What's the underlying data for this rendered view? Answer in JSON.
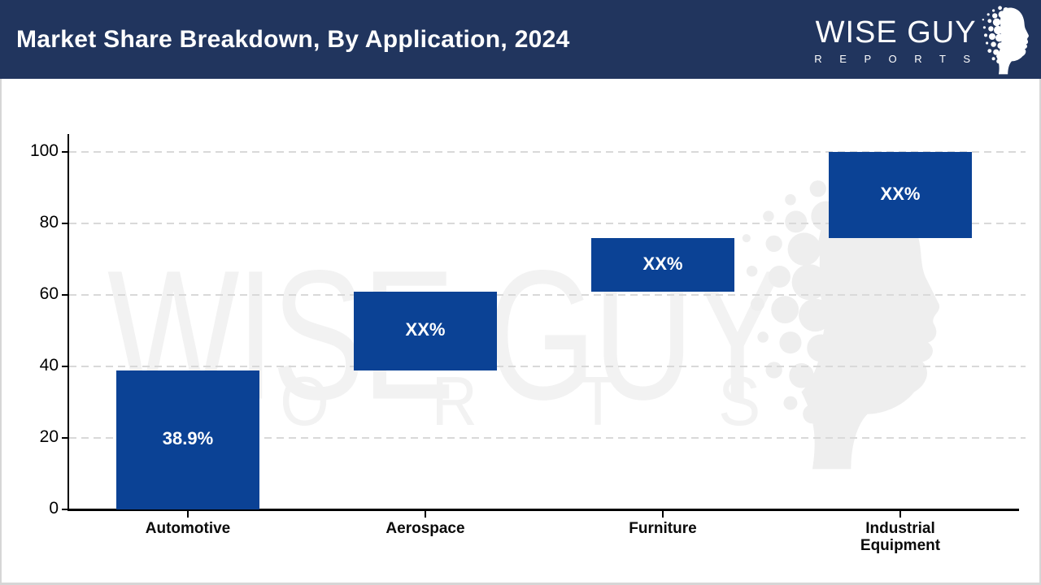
{
  "header": {
    "title": "Market Share Breakdown, By Application, 2024",
    "logo": {
      "wordmark": "WISE GUY",
      "sub": "R E P O R T S"
    }
  },
  "watermark": {
    "wordmark": "WISE GUY",
    "sub": "P O R T S"
  },
  "chart_data": {
    "type": "bar",
    "subtype": "waterfall-floating-segments",
    "title": "Market Share Breakdown, By Application, 2024",
    "categories": [
      "Automotive",
      "Aerospace",
      "Furniture",
      "Industrial Equipment"
    ],
    "segments": [
      {
        "category": "Automotive",
        "start": 0,
        "end": 38.9,
        "label": "38.9%"
      },
      {
        "category": "Aerospace",
        "start": 38.9,
        "end": 61.0,
        "label": "XX%"
      },
      {
        "category": "Furniture",
        "start": 61.0,
        "end": 75.9,
        "label": "XX%"
      },
      {
        "category": "Industrial Equipment",
        "start": 75.9,
        "end": 100,
        "label": "XX%"
      }
    ],
    "segment_sizes_pct": [
      38.9,
      22.1,
      14.9,
      24.1
    ],
    "yticks": [
      0,
      20,
      40,
      60,
      80,
      100
    ],
    "ylim": [
      0,
      105
    ],
    "xlabel": "",
    "ylabel": "",
    "grid": "horizontal-dashed",
    "legend": "none",
    "bar_color": "#0b4295",
    "bar_label_color": "#ffffff"
  },
  "colors": {
    "header_bg": "#21355E",
    "bar": "#0b4295",
    "grid": "#d9d9d9",
    "axis": "#000000",
    "watermark": "#f2f2f2",
    "frame_border": "#d6d6d6"
  }
}
